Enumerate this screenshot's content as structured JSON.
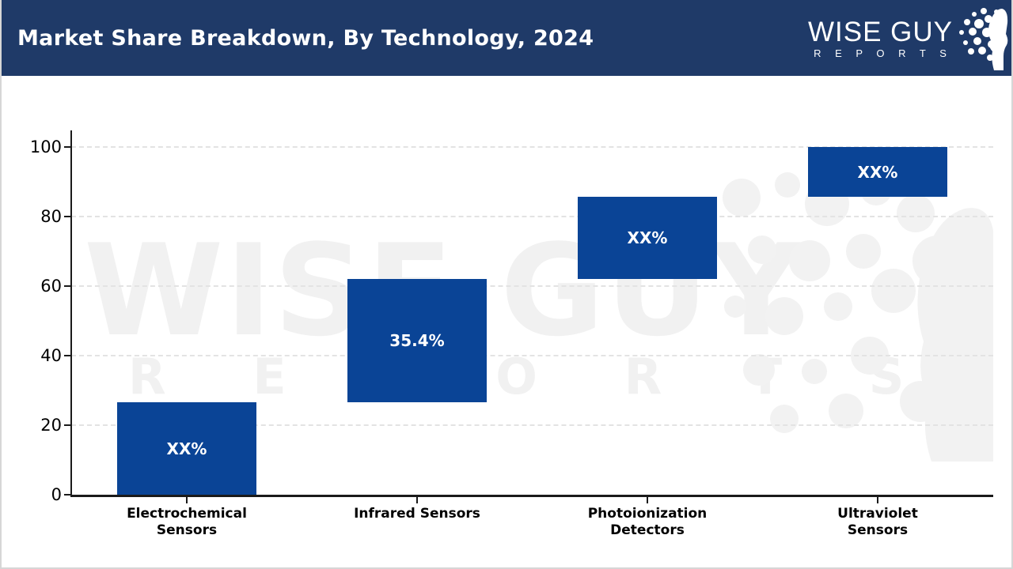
{
  "header": {
    "title": "Market Share Breakdown, By Technology, 2024",
    "logo": {
      "name": "WISE GUY",
      "subtitle": "R E P O R T S"
    }
  },
  "watermark": {
    "line1": "WISE GUY",
    "line2": "R E P O R T S"
  },
  "chart_data": {
    "type": "bar",
    "subtype": "waterfall",
    "title": "Market Share Breakdown, By Technology, 2024",
    "categories": [
      "Electrochemical Sensors",
      "Infrared Sensors",
      "Photoionization Detectors",
      "Ultraviolet Sensors"
    ],
    "category_lines": [
      [
        "Electrochemical",
        "Sensors"
      ],
      [
        "Infrared Sensors"
      ],
      [
        "Photoionization",
        "Detectors"
      ],
      [
        "Ultraviolet",
        "Sensors"
      ]
    ],
    "segments": [
      {
        "category": "Electrochemical Sensors",
        "start": 0,
        "end": 26.6,
        "label": "XX%"
      },
      {
        "category": "Infrared Sensors",
        "start": 26.6,
        "end": 62.0,
        "label": "35.4%"
      },
      {
        "category": "Photoionization Detectors",
        "start": 62.0,
        "end": 85.6,
        "label": "XX%"
      },
      {
        "category": "Ultraviolet Sensors",
        "start": 85.6,
        "end": 100,
        "label": "XX%"
      }
    ],
    "unit": "percent",
    "yticks": [
      0,
      20,
      40,
      60,
      80,
      100
    ],
    "ylim": [
      0,
      105
    ],
    "xlabel": "",
    "ylabel": "",
    "grid": "dashed-horizontal",
    "legend": "none",
    "bar_color": "#0a4496",
    "bar_label_color": "#ffffff",
    "axis_color": "#1a1a1a",
    "grid_color": "#e3e3e3",
    "header_color": "#1f3a68",
    "watermark_color": "#f1f1f1"
  }
}
